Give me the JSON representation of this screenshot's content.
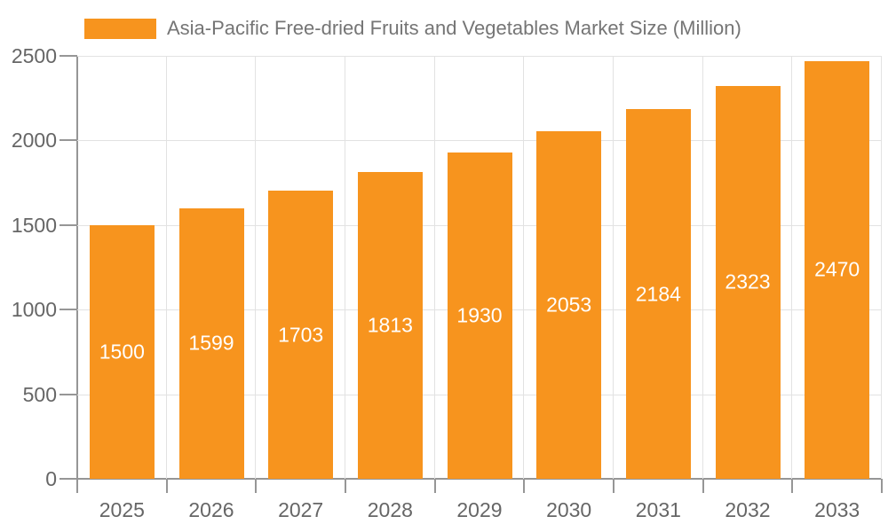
{
  "chart_data": {
    "type": "bar",
    "title": "Asia-Pacific Free-dried Fruits and Vegetables Market Size (Million)",
    "legend_position": "top",
    "categories": [
      "2025",
      "2026",
      "2027",
      "2028",
      "2029",
      "2030",
      "2031",
      "2032",
      "2033"
    ],
    "values": [
      1500,
      1599,
      1703,
      1813,
      1930,
      2053,
      2184,
      2323,
      2470
    ],
    "xlabel": "",
    "ylabel": "",
    "ylim": [
      0,
      2500
    ],
    "yticks": [
      0,
      500,
      1000,
      1500,
      2000,
      2500
    ],
    "grid": true,
    "bar_value_labels_visible": true,
    "colors": {
      "bar": "#F7941E",
      "bar_label": "#FFFFFF",
      "grid": "#E2E2E2",
      "axis": "#969696",
      "axis_text": "#666666",
      "legend_text": "#757575",
      "background": "#FFFFFF"
    }
  }
}
